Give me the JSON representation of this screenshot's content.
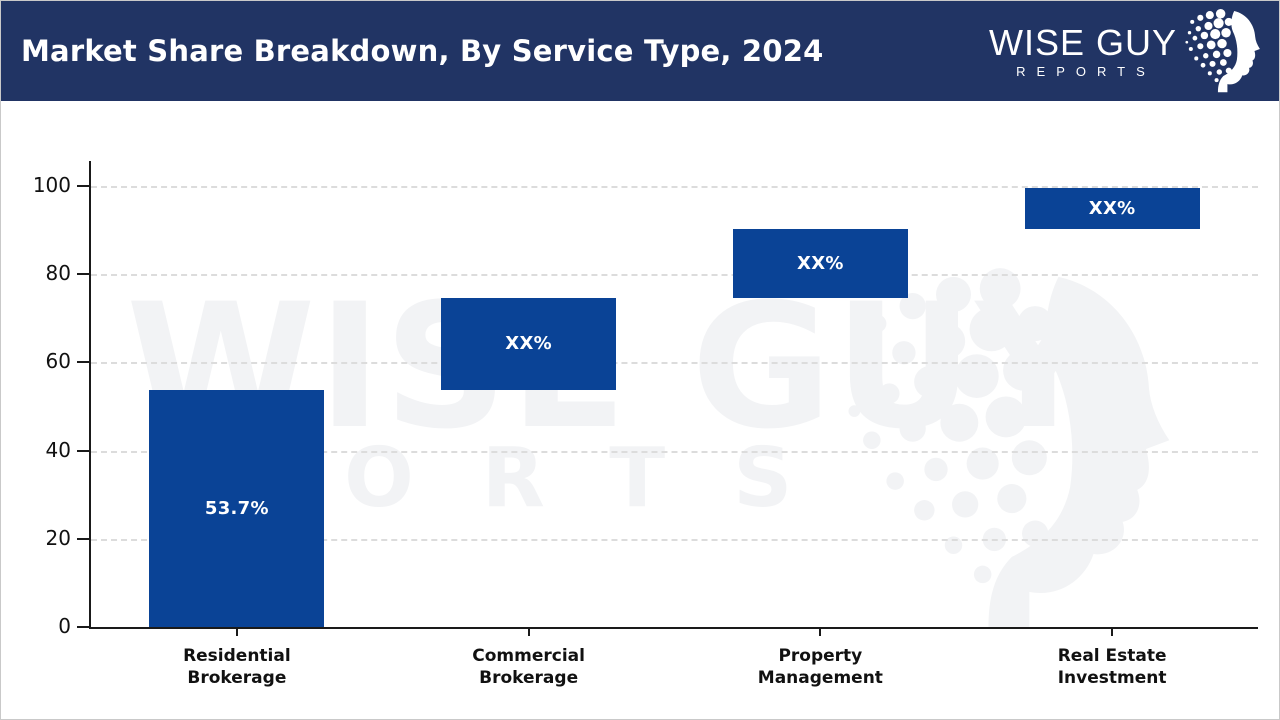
{
  "header": {
    "title": "Market Share Breakdown, By Service Type, 2024",
    "bg_color": "#213464",
    "logo": {
      "line1": "WISE GUY",
      "line2": "REPORTS"
    }
  },
  "watermark": {
    "line1": "WISE GUY",
    "line2": "PORTS"
  },
  "chart_data": {
    "type": "bar",
    "subtype": "waterfall",
    "title": "Market Share Breakdown, By Service Type, 2024",
    "xlabel": "",
    "ylabel": "",
    "categories": [
      "Residential\nBrokerage",
      "Commercial\nBrokerage",
      "Property\nManagement",
      "Real Estate\nInvestment"
    ],
    "segments": [
      {
        "category": "Residential Brokerage",
        "start": 0,
        "end": 53.7,
        "label": "53.7%"
      },
      {
        "category": "Commercial Brokerage",
        "start": 53.7,
        "end": 74.7,
        "label": "XX%"
      },
      {
        "category": "Property Management",
        "start": 74.7,
        "end": 90.3,
        "label": "XX%"
      },
      {
        "category": "Real Estate Investment",
        "start": 90.3,
        "end": 99.5,
        "label": "XX%"
      }
    ],
    "yticks": [
      0,
      20,
      40,
      60,
      80,
      100
    ],
    "ylim": [
      0,
      105.7
    ],
    "grid": true,
    "legend": false,
    "bar_color": "#0a4396",
    "bar_label_color": "#ffffff",
    "axis_color": "#1a1a1a",
    "gridline_color": "#dcdcdc"
  }
}
